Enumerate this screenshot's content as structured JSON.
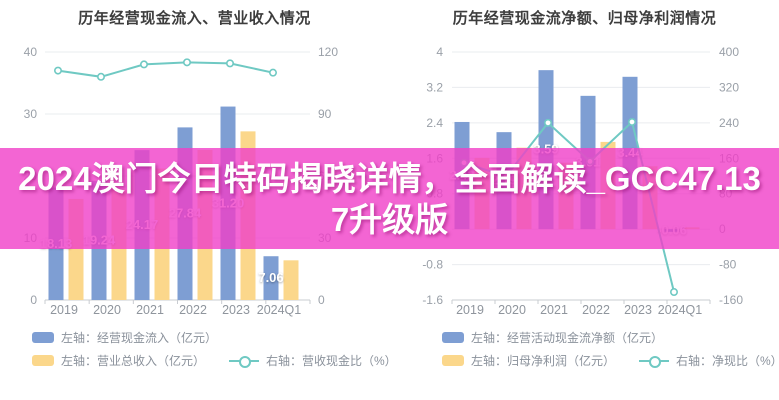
{
  "banner": {
    "text": "2024澳门今日特码揭晓详情，全面解读_GCC47.137升级版",
    "bg_color": "#f03ec8",
    "text_color": "#ffffff"
  },
  "colors": {
    "bar_blue": "#7e9ed3",
    "bar_yellow": "#fbd78b",
    "line_teal": "#6fc9c3",
    "grid": "#eaecef",
    "axis": "#c9ccd1"
  },
  "chart_data": [
    {
      "type": "bar",
      "title": "历年经营现金流入、营业收入情况",
      "categories": [
        "2019",
        "2020",
        "2021",
        "2022",
        "2023",
        "2024Q1"
      ],
      "series": [
        {
          "name": "左轴：经营现金流入（亿元）",
          "type": "bar",
          "axis": "left",
          "color": "#7e9ed3",
          "values": [
            18.13,
            19.24,
            24.17,
            27.84,
            31.2,
            7.06
          ],
          "labels": [
            "18.13",
            "19.24",
            "24.17",
            "27.84",
            "31.20",
            "7.06"
          ]
        },
        {
          "name": "左轴：营业总收入（亿元）",
          "type": "bar",
          "axis": "left",
          "color": "#fbd78b",
          "values": [
            16.3,
            17.8,
            21.2,
            24.2,
            27.2,
            6.4
          ]
        },
        {
          "name": "右轴：营收现金比（%）",
          "type": "line",
          "axis": "right",
          "color": "#6fc9c3",
          "values": [
            111,
            108,
            114,
            115,
            114.5,
            110
          ]
        }
      ],
      "left_axis": {
        "min": 0,
        "max": 40,
        "step": 10
      },
      "right_axis": {
        "min": 0,
        "max": 120,
        "step": 30
      },
      "grid": true,
      "legend_position": "bottom"
    },
    {
      "type": "bar",
      "title": "历年经营现金流净额、归母净利润情况",
      "categories": [
        "2019",
        "2020",
        "2021",
        "2022",
        "2023",
        "2024Q1"
      ],
      "series": [
        {
          "name": "左轴：经营活动现金流净额（亿元）",
          "type": "bar",
          "axis": "left",
          "color": "#7e9ed3",
          "values": [
            2.42,
            2.19,
            3.59,
            3.01,
            3.44,
            -0.06
          ],
          "labels": [
            "2.42",
            "2.19",
            "3.59",
            "3.01",
            "3.44",
            "-0.06"
          ]
        },
        {
          "name": "左轴：归母净利润（亿元）",
          "type": "bar",
          "axis": "left",
          "color": "#fbd78b",
          "values": [
            1.61,
            1.84,
            1.5,
            1.97,
            1.42,
            0.04
          ]
        },
        {
          "name": "右轴：净现比（%）",
          "type": "line",
          "axis": "right",
          "color": "#6fc9c3",
          "values": [
            150,
            119,
            240,
            153,
            242,
            -142
          ]
        }
      ],
      "left_axis": {
        "min": -1.6,
        "max": 4,
        "step": 0.8
      },
      "right_axis": {
        "min": -160,
        "max": 400,
        "step": 80
      },
      "grid": true,
      "legend_position": "bottom"
    }
  ]
}
